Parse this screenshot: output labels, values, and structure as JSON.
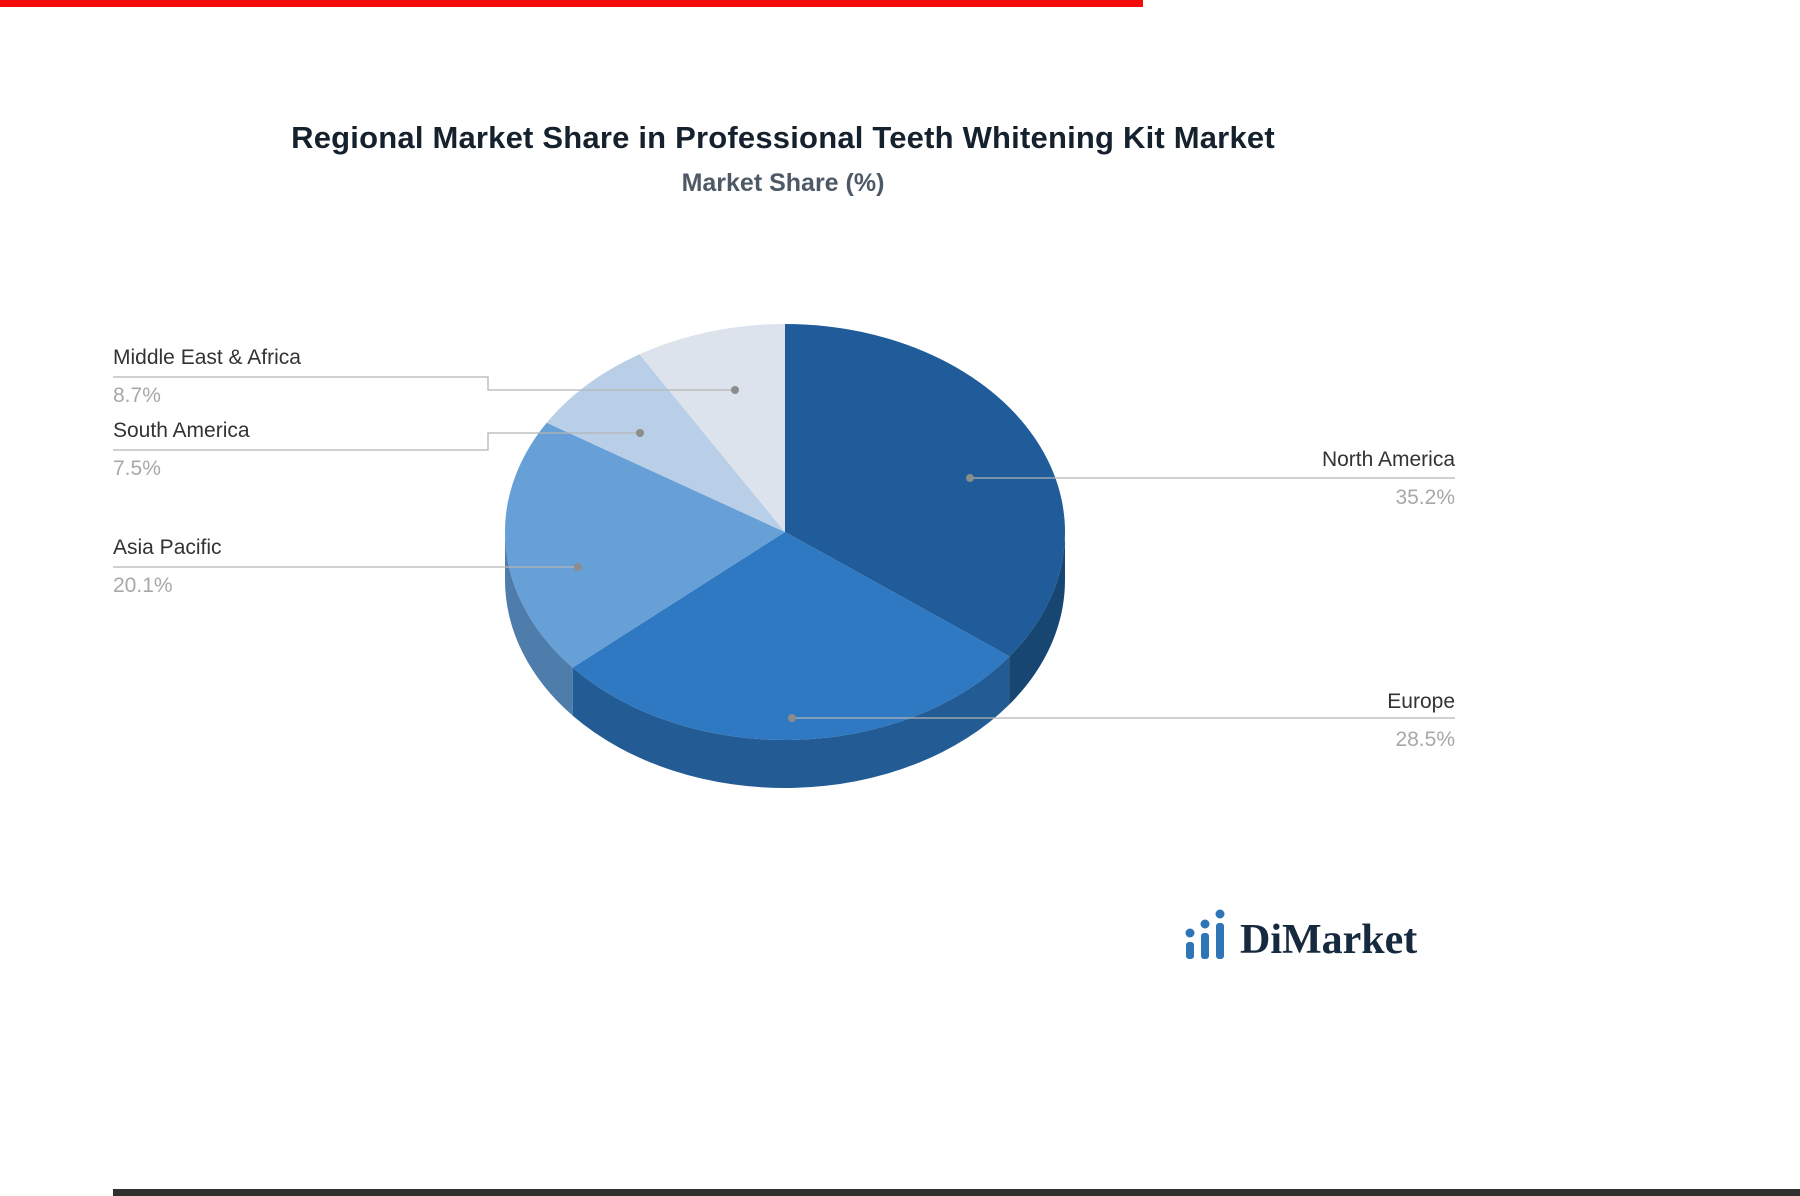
{
  "title": "Regional Market Share in Professional Teeth Whitening Kit Market",
  "subtitle": "Market Share (%)",
  "logo": {
    "text": "DiMarket",
    "icon": "bar-chart-logo-icon",
    "icon_color": "#2e75b6",
    "text_color": "#16293f"
  },
  "chart_data": {
    "type": "pie",
    "title": "Regional Market Share in Professional Teeth Whitening Kit Market",
    "subtitle": "Market Share (%)",
    "units": "%",
    "style": "3d-pie",
    "direction": "clockwise",
    "start_angle_deg": 0,
    "legend_position": "callout-labels",
    "slices": [
      {
        "label": "North America",
        "value": 35.2,
        "display": "35.2%",
        "color": "#1f5c99",
        "side_color": "#174672",
        "label_side": "right"
      },
      {
        "label": "Europe",
        "value": 28.5,
        "display": "28.5%",
        "color": "#2e79c2",
        "side_color": "#235c94",
        "label_side": "right"
      },
      {
        "label": "Asia Pacific",
        "value": 20.1,
        "display": "20.1%",
        "color": "#67a0d6",
        "side_color": "#4e7cab",
        "label_side": "left"
      },
      {
        "label": "South America",
        "value": 7.5,
        "display": "7.5%",
        "color": "#b9cfe8",
        "side_color": "#8ea9c6",
        "label_side": "left"
      },
      {
        "label": "Middle East & Africa",
        "value": 8.7,
        "display": "8.7%",
        "color": "#dde3ed",
        "side_color": "#b2bccb",
        "label_side": "left"
      }
    ],
    "line_color": "#b5b5b5",
    "dot_color": "#8c8c8c"
  }
}
